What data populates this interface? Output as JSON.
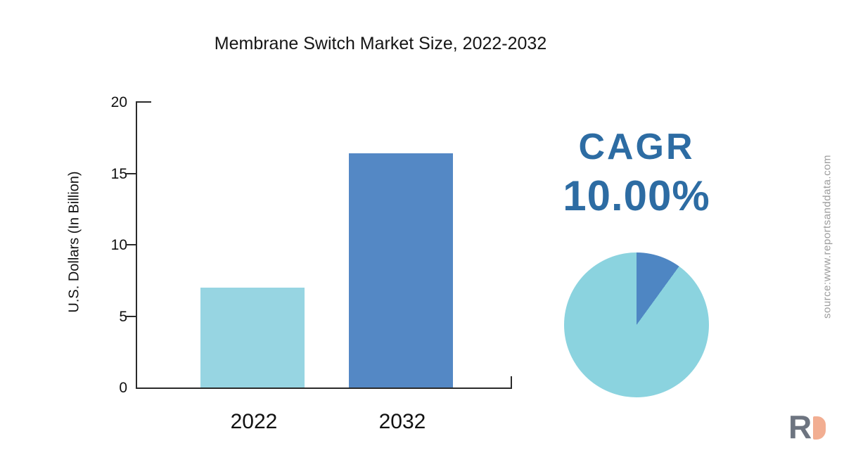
{
  "chart_data": {
    "type": "bar",
    "title": "Membrane Switch Market Size, 2022-2032",
    "categories": [
      "2022",
      "2032"
    ],
    "values": [
      7.0,
      16.4
    ],
    "xlabel": "",
    "ylabel": "U.S. Dollars (In Billion)",
    "ylim": [
      0,
      20
    ],
    "yticks": [
      0,
      5,
      10,
      15,
      20
    ],
    "grid": false,
    "legend": false,
    "bar_colors": [
      "#97D5E2",
      "#5488C5"
    ]
  },
  "cagr": {
    "label": "CAGR",
    "value": "10.00%",
    "color": "#2D6CA3"
  },
  "pie": {
    "wedge_percent": 10,
    "start_angle_deg": 0,
    "wedge_color": "#4E86C3",
    "base_color": "#8BD3DF"
  },
  "source_text": "source:www.reportsanddata.com",
  "logo": {
    "letter": "R",
    "r_color": "#6D7480",
    "d_color": "#F2AE92"
  }
}
